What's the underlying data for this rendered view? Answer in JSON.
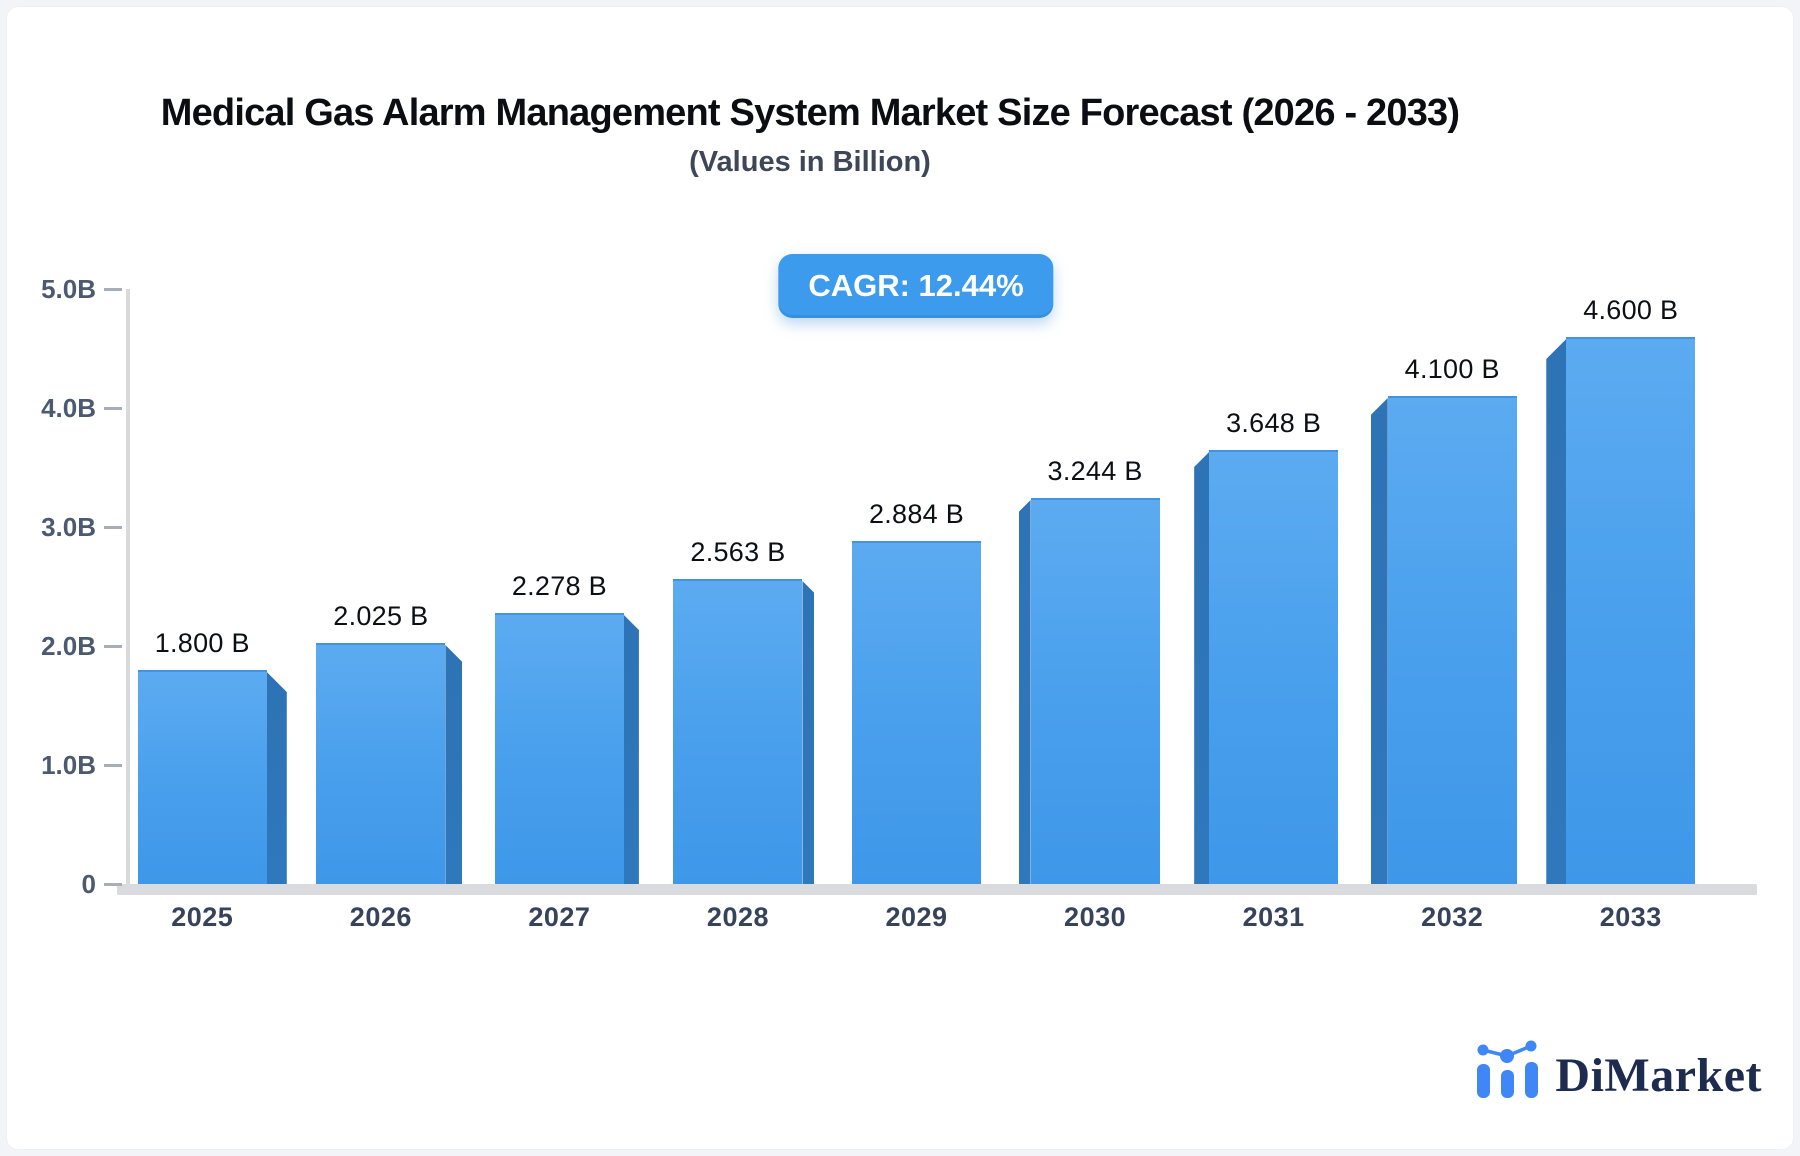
{
  "page": {
    "title": "Medical Gas Alarm Management System Market Size Forecast (2026 - 2033)",
    "subtitle": "(Values in Billion)",
    "cagr_badge": "CAGR: 12.44%",
    "brand": "DiMarket"
  },
  "colors": {
    "badge_blue": "#3d9bee",
    "bar_face_top": "#5cabf1",
    "bar_face_bottom": "#3f97e9",
    "bar_side_shadow": "#2e74b7",
    "axis_gray": "#d8dade",
    "logo_blue": "#3f87f6",
    "logo_text_navy": "#1d2b4f"
  },
  "chart_data": {
    "type": "bar",
    "title": "Medical Gas Alarm Management System Market Size Forecast (2026 - 2033)",
    "subtitle": "(Values in Billion)",
    "cagr": "12.44%",
    "categories": [
      "2025",
      "2026",
      "2027",
      "2028",
      "2029",
      "2030",
      "2031",
      "2032",
      "2033"
    ],
    "values": [
      1.8,
      2.025,
      2.278,
      2.563,
      2.884,
      3.244,
      3.648,
      4.1,
      4.6
    ],
    "bar_labels": [
      "1.800 B",
      "2.025 B",
      "2.278 B",
      "2.563 B",
      "2.884 B",
      "3.244 B",
      "3.648 B",
      "4.100 B",
      "4.600 B"
    ],
    "unit_suffix": "B",
    "xlabel": "",
    "ylabel": "",
    "ylim": [
      0,
      5
    ],
    "y_ticks": [
      {
        "label": "5.0B",
        "v": 5
      },
      {
        "label": "4.0B",
        "v": 4
      },
      {
        "label": "3.0B",
        "v": 3
      },
      {
        "label": "2.0B",
        "v": 2
      },
      {
        "label": "1.0B",
        "v": 1
      },
      {
        "label": "0",
        "v": 0
      }
    ],
    "grid": "off",
    "legend": "none",
    "style": "3d-perspective-bars, vanishing point at center bar"
  }
}
